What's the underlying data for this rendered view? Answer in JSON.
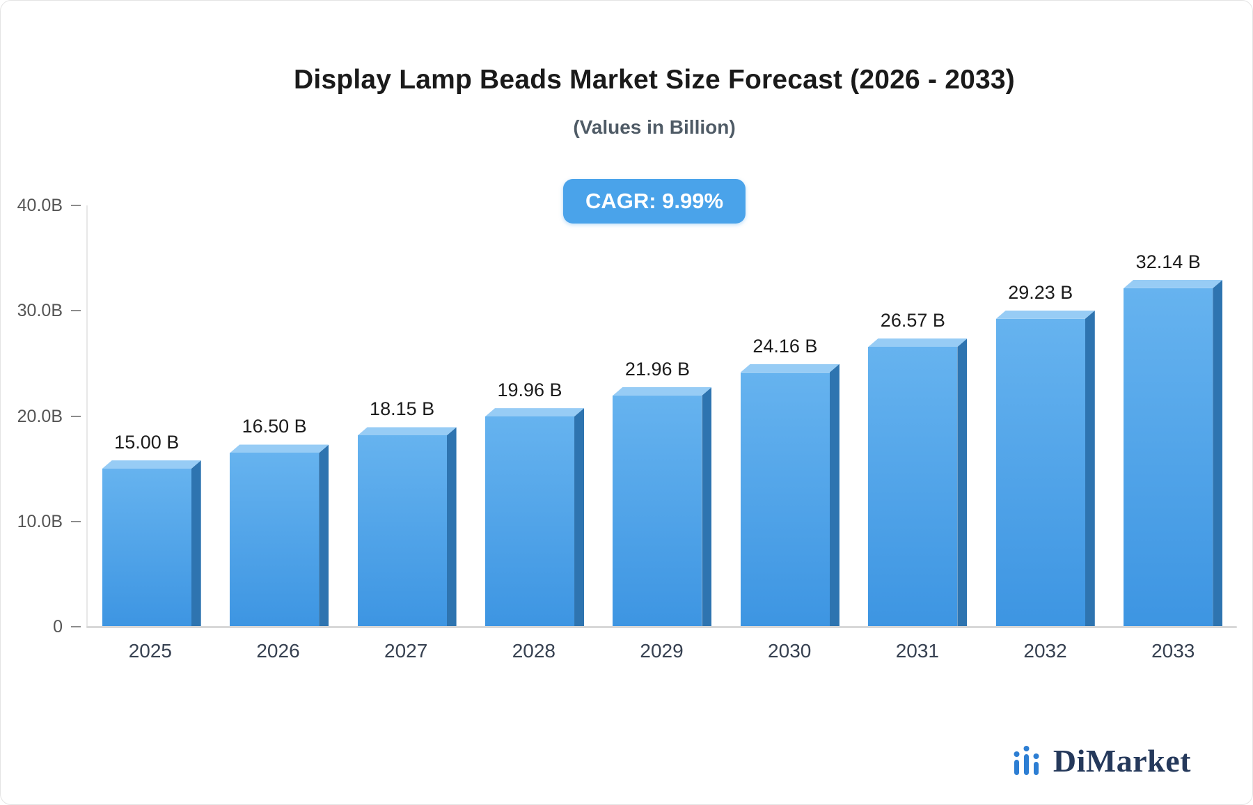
{
  "header": {
    "title": "Display Lamp Beads Market Size Forecast (2026 - 2033)",
    "subtitle": "(Values in Billion)",
    "cagr_badge": "CAGR: 9.99%"
  },
  "chart_data": {
    "type": "bar",
    "title": "Display Lamp Beads Market Size Forecast (2026 - 2033)",
    "subtitle": "(Values in Billion)",
    "annotation": "CAGR: 9.99%",
    "categories": [
      "2025",
      "2026",
      "2027",
      "2028",
      "2029",
      "2030",
      "2031",
      "2032",
      "2033"
    ],
    "values": [
      15.0,
      16.5,
      18.15,
      19.96,
      21.96,
      24.16,
      26.57,
      29.23,
      32.14
    ],
    "value_labels": [
      "15.00 B",
      "16.50 B",
      "18.15 B",
      "19.96 B",
      "21.96 B",
      "24.16 B",
      "26.57 B",
      "29.23 B",
      "32.14 B"
    ],
    "xlabel": "",
    "ylabel": "",
    "ylim": [
      0,
      40
    ],
    "yticks": [
      {
        "value": 40,
        "label": "40.0B"
      },
      {
        "value": 30,
        "label": "30.0B"
      },
      {
        "value": 20,
        "label": "20.0B"
      },
      {
        "value": 10,
        "label": "10.0B"
      },
      {
        "value": 0,
        "label": "0"
      }
    ],
    "grid": false,
    "legend_position": "none",
    "bar_colors": {
      "front_top": "#66b3ef",
      "front_bottom": "#3d95e2",
      "top_face": "#97ccf5",
      "side_face": "#2e74b0"
    }
  },
  "branding": {
    "logo_text": "DiMarket",
    "logo_icon": "bar-chart-icon",
    "logo_text_color": "#25395b",
    "logo_icon_color": "#2d7ed3"
  }
}
